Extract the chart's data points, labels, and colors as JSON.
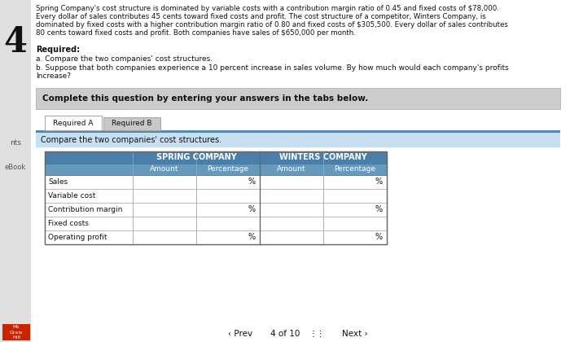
{
  "top_text_line1": "Spring Company's cost structure is dominated by variable costs with a contribution margin ratio of 0.45 and fixed costs of $78,000.",
  "top_text_line2": "Every dollar of sales contributes 45 cents toward fixed costs and profit. The cost structure of a competitor, Winters Company, is",
  "top_text_line3": "dominated by fixed costs with a higher contribution margin ratio of 0.80 and fixed costs of $305,500. Every dollar of sales contributes",
  "top_text_line4": "80 cents toward fixed costs and profit. Both companies have sales of $650,000 per month.",
  "required_label": "Required:",
  "req_a": "a. Compare the two companies' cost structures.",
  "req_b1": "b. Suppose that both companies experience a 10 percent increase in sales volume. By how much would each company's profits",
  "req_b2": "Increase?",
  "complete_text": "Complete this question by entering your answers in the tabs below.",
  "tab1": "Required A",
  "tab2": "Required B",
  "compare_text": "Compare the two companies' cost structures.",
  "col_header1": "SPRING COMPANY",
  "col_header2": "WINTERS COMPANY",
  "sub_header1": "Amount",
  "sub_header2": "Percentage",
  "sub_header3": "Amount",
  "sub_header4": "Percentage",
  "row_labels": [
    "Sales",
    "Variable cost",
    "Contribution margin",
    "Fixed costs",
    "Operating profit"
  ],
  "percent_rows": [
    0,
    2,
    4
  ],
  "bg_white": "#ffffff",
  "bg_page": "#f0f0f0",
  "bg_sidebar": "#e0e0e0",
  "bg_banner": "#cccccc",
  "bg_compare": "#c8dff0",
  "bg_table_header": "#4a7faa",
  "bg_table_subheader": "#6699bb",
  "bg_cell_white": "#ffffff",
  "bg_tab_active": "#ffffff",
  "bg_tab_inactive": "#c8c8c8",
  "border_dark": "#666666",
  "border_light": "#aaaaaa",
  "text_dark": "#111111",
  "text_white": "#ffffff",
  "text_gray": "#555555",
  "mcgraw_red": "#cc2200",
  "footer_prev": "‹ Prev",
  "footer_mid": "4 of 10",
  "footer_next": "Next ›"
}
